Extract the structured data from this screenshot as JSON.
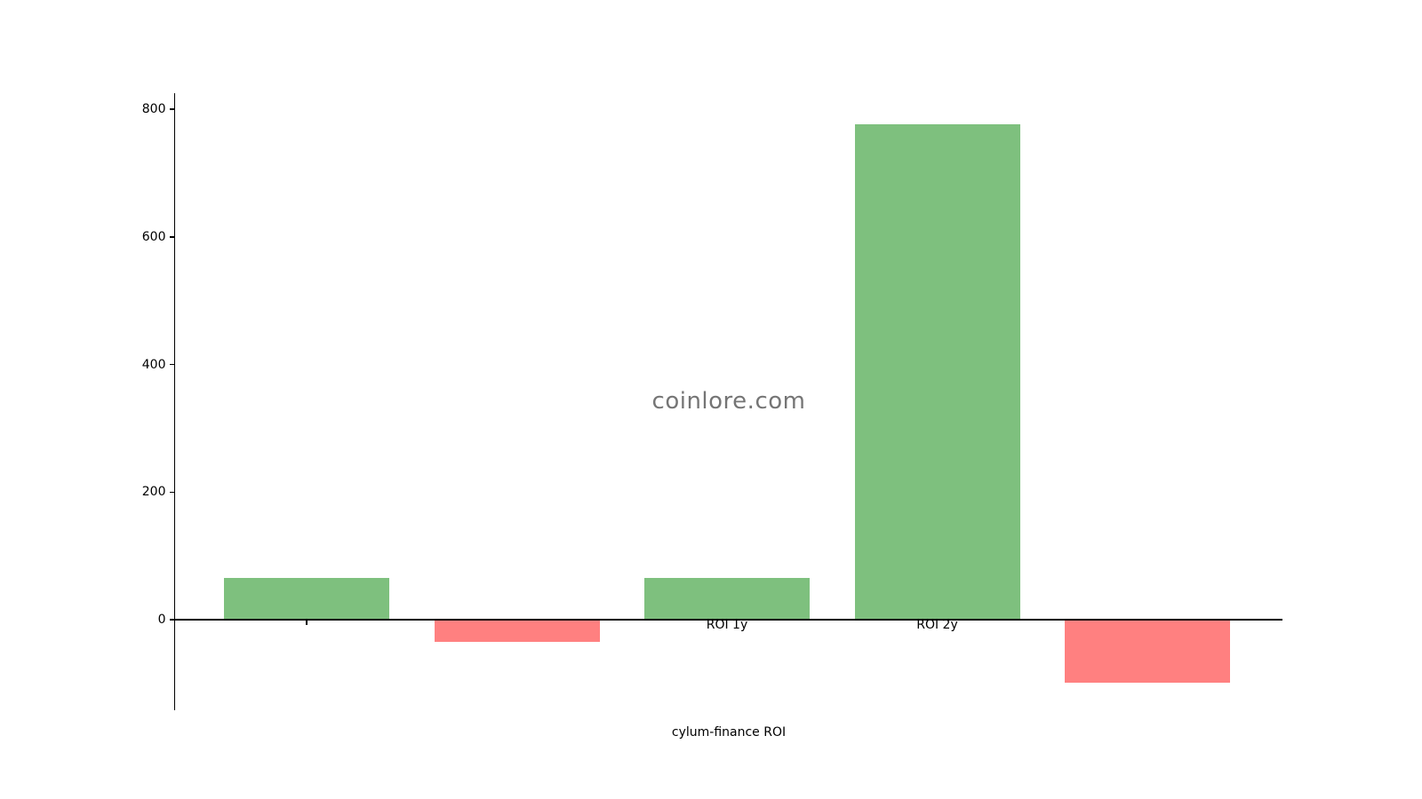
{
  "page": {
    "background": "#ffffff"
  },
  "watermark": {
    "text": "coinlore.com",
    "color": "#757575"
  },
  "chart_data": {
    "type": "bar",
    "title": "cylum-finance ROI",
    "categories": [
      "",
      "",
      "ROI 1y",
      "ROI 2y",
      ""
    ],
    "values": [
      65,
      -35,
      65,
      776,
      -99
    ],
    "bar_colors": [
      "#7ec07e",
      "#ff8080",
      "#7ec07e",
      "#7ec07e",
      "#ff8080"
    ],
    "positive_color": "#7ec07e",
    "negative_color": "#ff8080",
    "axis_color": "#000000",
    "xlabel": "",
    "ylabel": "",
    "yticks": [
      0,
      200,
      400,
      600,
      800
    ],
    "ylim": [
      -142,
      825
    ],
    "grid": false,
    "legend_position": "none",
    "xtick_visible": [
      true,
      false,
      false,
      false,
      false
    ]
  }
}
